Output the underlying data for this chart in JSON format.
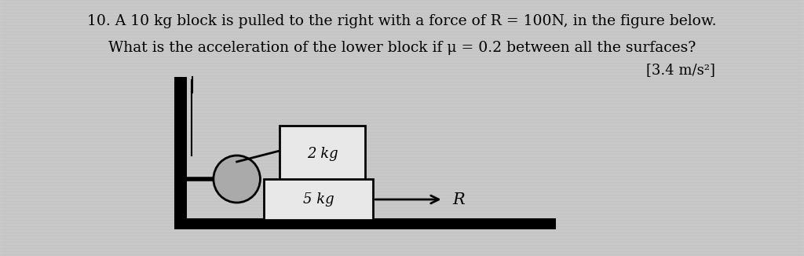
{
  "background_color": "#c8c8c8",
  "text_line1": "10. A 10 kg block is pulled to the right with a force of R = 100N, in the figure below.",
  "text_line2": "What is the acceleration of the lower block if μ = 0.2 between all the surfaces?",
  "text_answer": "[3.4 m/s²]",
  "label_upper": "2 kg",
  "label_lower": "5 kg",
  "label_force": "R",
  "black": "#000000",
  "white": "#e8e8e8",
  "font_size_text": 13.5,
  "font_size_label": 13,
  "font_size_answer": 13
}
